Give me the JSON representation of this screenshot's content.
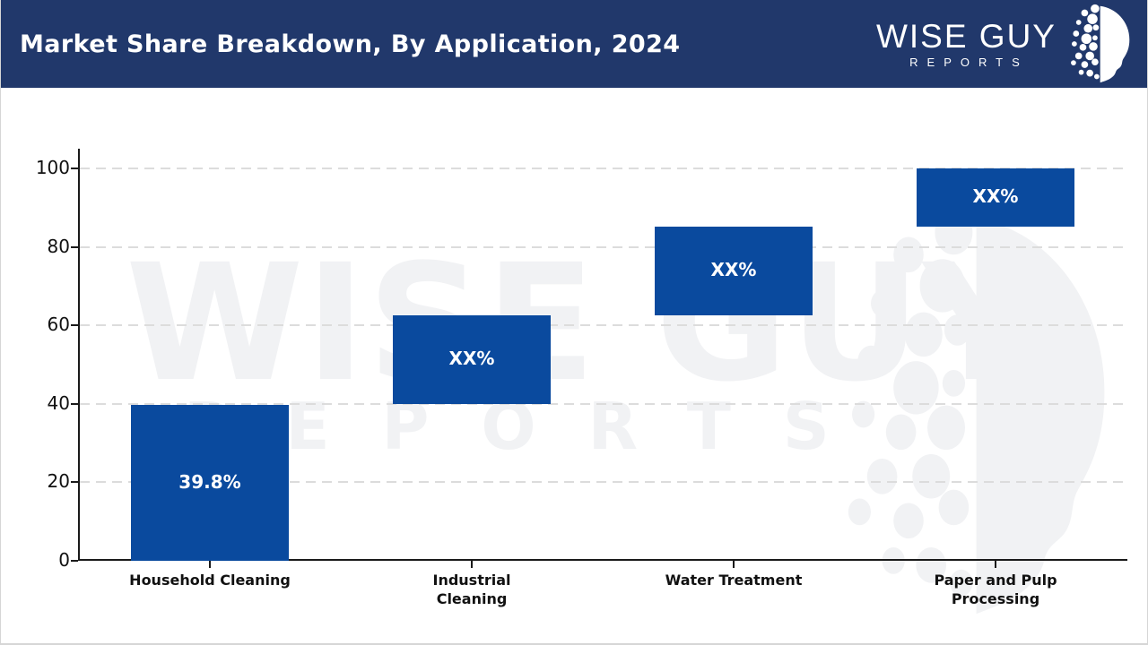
{
  "header": {
    "title": "Market Share Breakdown, By Application, 2024",
    "logo": {
      "line1": "WISE GUY",
      "line2": "REPORTS"
    }
  },
  "watermark": {
    "line1": "WISE GUY",
    "line2": "REPORTS"
  },
  "chart_data": {
    "type": "bar",
    "subtype": "waterfall-market-share",
    "title": "Market Share Breakdown, By Application, 2024",
    "categories": [
      "Household Cleaning",
      "Industrial\nCleaning",
      "Water Treatment",
      "Paper and Pulp\nProcessing"
    ],
    "segments": [
      {
        "category": "Household Cleaning",
        "start": 0,
        "end": 39.8,
        "value_label": "39.8%"
      },
      {
        "category": "Industrial Cleaning",
        "start": 40.0,
        "end": 62.6,
        "value_label": "XX%"
      },
      {
        "category": "Water Treatment",
        "start": 62.6,
        "end": 85.2,
        "value_label": "XX%"
      },
      {
        "category": "Paper and Pulp Processing",
        "start": 85.2,
        "end": 100,
        "value_label": "XX%"
      }
    ],
    "yticks": [
      0,
      20,
      40,
      60,
      80,
      100
    ],
    "ylim": [
      0,
      105
    ],
    "xlabel": "",
    "ylabel": "",
    "grid": "horizontal-dashed",
    "legend": "none",
    "bar_color": "#0A4A9E",
    "bar_label_color": "#ffffff",
    "axis_color": "#1a1a1a",
    "gridline_color": "#dcdcdc",
    "header_color": "#21386B",
    "watermark_color": "#f1f2f4"
  }
}
